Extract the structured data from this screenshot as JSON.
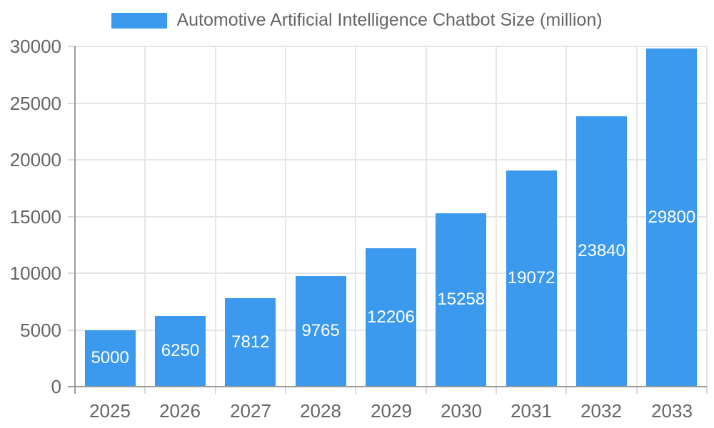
{
  "legend": {
    "label": "Automotive Artificial Intelligence Chatbot Size (million)"
  },
  "chart_data": {
    "type": "bar",
    "title": "Automotive Artificial Intelligence Chatbot Size (million)",
    "categories": [
      "2025",
      "2026",
      "2027",
      "2028",
      "2029",
      "2030",
      "2031",
      "2032",
      "2033"
    ],
    "values": [
      5000,
      6250,
      7812,
      9765,
      12206,
      15258,
      19072,
      23840,
      29800
    ],
    "xlabel": "",
    "ylabel": "",
    "ylim": [
      0,
      30000
    ],
    "yticks": [
      0,
      5000,
      10000,
      15000,
      20000,
      25000,
      30000
    ],
    "grid": true,
    "legend_position": "top",
    "bar_color": "#3B99EE",
    "value_label_color": "#ffffff",
    "axis_text_color": "#666666",
    "grid_color": "#e6e6e6",
    "tick_color": "#d9d9d9",
    "axis_line_color": "#9a9a9a"
  }
}
